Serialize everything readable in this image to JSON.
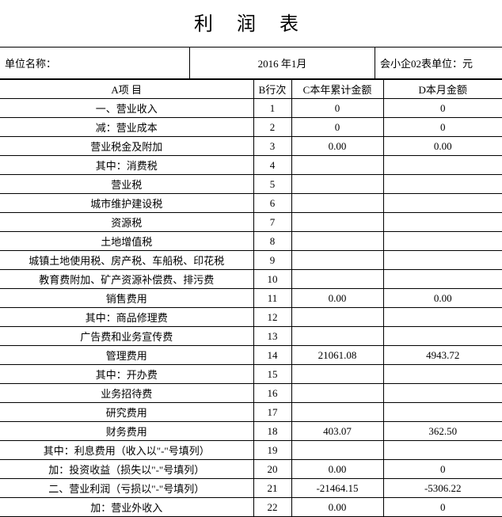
{
  "title": "利 润 表",
  "meta": {
    "org_label": "单位名称：",
    "date": "2016 年1月",
    "unit_label": "会小企02表单位：元"
  },
  "columns": {
    "a": "A项   目",
    "b": "B行次",
    "c": "C本年累计金额",
    "d": "D本月金额"
  },
  "rows": [
    {
      "item": "一、营业收入",
      "seq": "1",
      "ytd": "0",
      "month": "0"
    },
    {
      "item": "减：营业成本",
      "seq": "2",
      "ytd": "0",
      "month": "0"
    },
    {
      "item": "营业税金及附加",
      "seq": "3",
      "ytd": "0.00",
      "month": "0.00"
    },
    {
      "item": "其中：消费税",
      "seq": "4",
      "ytd": "",
      "month": ""
    },
    {
      "item": "营业税",
      "seq": "5",
      "ytd": "",
      "month": ""
    },
    {
      "item": "城市维护建设税",
      "seq": "6",
      "ytd": "",
      "month": ""
    },
    {
      "item": "资源税",
      "seq": "7",
      "ytd": "",
      "month": ""
    },
    {
      "item": "土地增值税",
      "seq": "8",
      "ytd": "",
      "month": ""
    },
    {
      "item": "城镇土地使用税、房产税、车船税、印花税",
      "seq": "9",
      "ytd": "",
      "month": ""
    },
    {
      "item": "教育费附加、矿产资源补偿费、排污费",
      "seq": "10",
      "ytd": "",
      "month": ""
    },
    {
      "item": "销售费用",
      "seq": "11",
      "ytd": "0.00",
      "month": "0.00"
    },
    {
      "item": "其中：商品修理费",
      "seq": "12",
      "ytd": "",
      "month": ""
    },
    {
      "item": "广告费和业务宣传费",
      "seq": "13",
      "ytd": "",
      "month": ""
    },
    {
      "item": "管理费用",
      "seq": "14",
      "ytd": "21061.08",
      "month": "4943.72"
    },
    {
      "item": "其中：开办费",
      "seq": "15",
      "ytd": "",
      "month": ""
    },
    {
      "item": "业务招待费",
      "seq": "16",
      "ytd": "",
      "month": ""
    },
    {
      "item": "研究费用",
      "seq": "17",
      "ytd": "",
      "month": ""
    },
    {
      "item": "财务费用",
      "seq": "18",
      "ytd": "403.07",
      "month": "362.50"
    },
    {
      "item": "其中：利息费用（收入以\"-\"号填列）",
      "seq": "19",
      "ytd": "",
      "month": ""
    },
    {
      "item": "加：投资收益（损失以\"-\"号填列）",
      "seq": "20",
      "ytd": "0.00",
      "month": "0"
    },
    {
      "item": "二、营业利润（亏损以\"-\"号填列）",
      "seq": "21",
      "ytd": "-21464.15",
      "month": "-5306.22"
    },
    {
      "item": "加：营业外收入",
      "seq": "22",
      "ytd": "0.00",
      "month": "0"
    }
  ]
}
